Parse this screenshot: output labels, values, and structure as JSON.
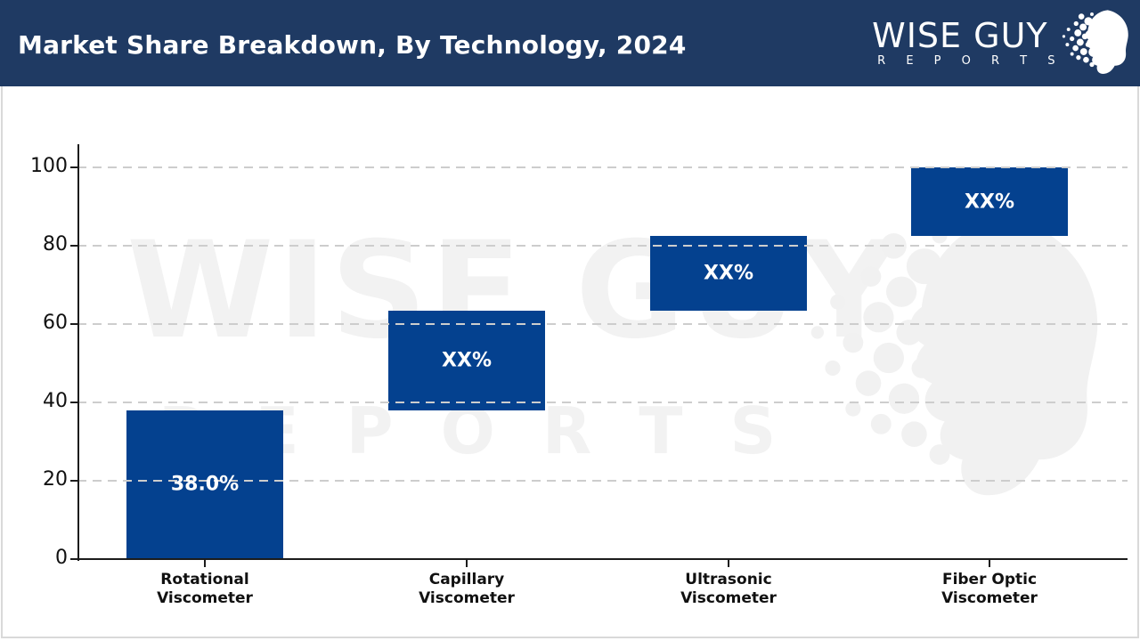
{
  "header": {
    "title": "Market Share Breakdown, By Technology, 2024",
    "logo": {
      "name": "WISE GUY",
      "tagline": "R E P O R T S",
      "icon": "wise-guy-head-icon"
    },
    "bg_color": "#1f3a63"
  },
  "watermark": {
    "line1": "WISE GUY",
    "line2": "R E P O R T S",
    "color": "#f2f2f2"
  },
  "colors": {
    "header_bg": "#1f3a63",
    "bar": "#04418f",
    "grid": "#cdcdcd",
    "axis": "#1c1c1c",
    "bar_label_text": "#ffffff"
  },
  "chart_data": {
    "type": "bar",
    "subtype": "waterfall",
    "title": "Market Share Breakdown, By Technology, 2024",
    "categories": [
      "Rotational Viscometer",
      "Capillary Viscometer",
      "Ultrasonic Viscometer",
      "Fiber Optic Viscometer"
    ],
    "category_lines": [
      [
        "Rotational",
        "Viscometer"
      ],
      [
        "Capillary",
        "Viscometer"
      ],
      [
        "Ultrasonic",
        "Viscometer"
      ],
      [
        "Fiber Optic",
        "Viscometer"
      ]
    ],
    "segments": [
      {
        "category": "Rotational Viscometer",
        "start": 0,
        "end": 38,
        "label": "38.0%"
      },
      {
        "category": "Capillary Viscometer",
        "start": 38,
        "end": 63.5,
        "label": "XX%"
      },
      {
        "category": "Ultrasonic Viscometer",
        "start": 63.5,
        "end": 82.5,
        "label": "XX%"
      },
      {
        "category": "Fiber Optic Viscometer",
        "start": 82.5,
        "end": 100,
        "label": "XX%"
      }
    ],
    "xlabel": "",
    "ylabel": "",
    "ylim": [
      0,
      100
    ],
    "yticks": [
      0,
      20,
      40,
      60,
      80,
      100
    ],
    "grid": "horizontal-dashed",
    "legend": null,
    "bar_color": "#04418f"
  }
}
